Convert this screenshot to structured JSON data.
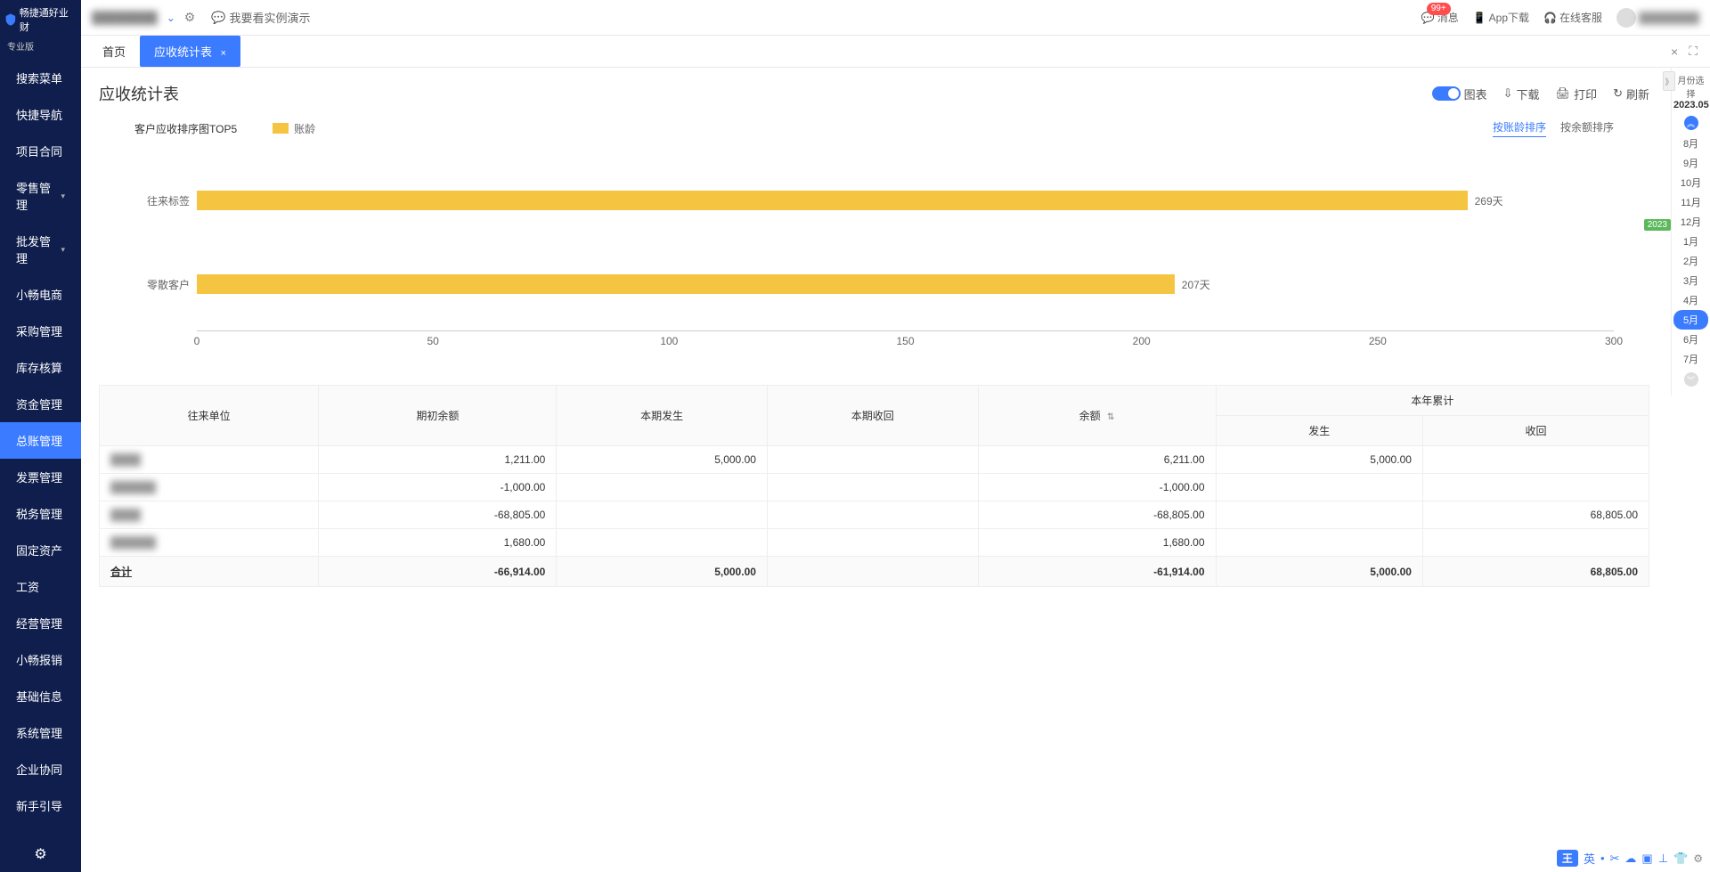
{
  "brand": {
    "name": "畅捷通好业财",
    "edition": "专业版"
  },
  "header": {
    "company": "████████",
    "scenario": "我要看实例演示",
    "messages": {
      "label": "消息",
      "badge": "99+"
    },
    "download": "App下载",
    "support": "在线客服",
    "username": "████████"
  },
  "sidebar": {
    "items": [
      {
        "label": "搜索菜单",
        "expand": false
      },
      {
        "label": "快捷导航",
        "expand": false
      },
      {
        "label": "项目合同",
        "expand": false
      },
      {
        "label": "零售管理",
        "expand": true
      },
      {
        "label": "批发管理",
        "expand": true
      },
      {
        "label": "小畅电商",
        "expand": false
      },
      {
        "label": "采购管理",
        "expand": false
      },
      {
        "label": "库存核算",
        "expand": false
      },
      {
        "label": "资金管理",
        "expand": false
      },
      {
        "label": "总账管理",
        "expand": false,
        "active": true
      },
      {
        "label": "发票管理",
        "expand": false
      },
      {
        "label": "税务管理",
        "expand": false
      },
      {
        "label": "固定资产",
        "expand": false
      },
      {
        "label": "工资",
        "expand": false
      },
      {
        "label": "经营管理",
        "expand": false
      },
      {
        "label": "小畅报销",
        "expand": false
      },
      {
        "label": "基础信息",
        "expand": false
      },
      {
        "label": "系统管理",
        "expand": false
      },
      {
        "label": "企业协同",
        "expand": false
      },
      {
        "label": "新手引导",
        "expand": false
      }
    ]
  },
  "tabs": {
    "home": "首页",
    "active": "应收统计表"
  },
  "page": {
    "title": "应收统计表",
    "toggle_label": "图表",
    "download": "下载",
    "print": "打印",
    "refresh": "刷新"
  },
  "chart": {
    "title": "客户应收排序图TOP5",
    "legend_label": "账龄",
    "sort1": "按账龄排序",
    "sort2": "按余额排序",
    "xmax": 300,
    "xtick_step": 50,
    "xticks": [
      "0",
      "50",
      "100",
      "150",
      "200",
      "250",
      "300"
    ],
    "bar_color": "#f5c542",
    "background_color": "#ffffff",
    "axis_color": "#cccccc",
    "label_fontsize": 12,
    "bars": [
      {
        "label": "往来标签",
        "value": 269,
        "display": "269天",
        "y_pct": 25
      },
      {
        "label": "零散客户",
        "value": 207,
        "display": "207天",
        "y_pct": 70
      }
    ]
  },
  "table": {
    "headers": {
      "unit": "往来单位",
      "opening": "期初余额",
      "current_occur": "本期发生",
      "current_recover": "本期收回",
      "balance": "余额",
      "ytd": "本年累计",
      "ytd_occur": "发生",
      "ytd_recover": "收回"
    },
    "rows": [
      {
        "unit": "████",
        "opening": "1,211.00",
        "occur": "5,000.00",
        "recover": "",
        "balance": "6,211.00",
        "ytd_occur": "5,000.00",
        "ytd_recover": ""
      },
      {
        "unit": "██████",
        "opening": "-1,000.00",
        "occur": "",
        "recover": "",
        "balance": "-1,000.00",
        "ytd_occur": "",
        "ytd_recover": ""
      },
      {
        "unit": "████",
        "opening": "-68,805.00",
        "occur": "",
        "recover": "",
        "balance": "-68,805.00",
        "ytd_occur": "",
        "ytd_recover": "68,805.00"
      },
      {
        "unit": "██████",
        "opening": "1,680.00",
        "occur": "",
        "recover": "",
        "balance": "1,680.00",
        "ytd_occur": "",
        "ytd_recover": ""
      }
    ],
    "total": {
      "label": "合计",
      "opening": "-66,914.00",
      "occur": "5,000.00",
      "recover": "",
      "balance": "-61,914.00",
      "ytd_occur": "5,000.00",
      "ytd_recover": "68,805.00"
    }
  },
  "month_panel": {
    "title": "月份选择",
    "current": "2023.05",
    "year_tag": "2023",
    "months": [
      "8月",
      "9月",
      "10月",
      "11月",
      "12月",
      "1月",
      "2月",
      "3月",
      "4月",
      "5月",
      "6月",
      "7月"
    ],
    "active_index": 9
  },
  "bottom_toolbar": {
    "badge": "王",
    "ime": "英"
  }
}
